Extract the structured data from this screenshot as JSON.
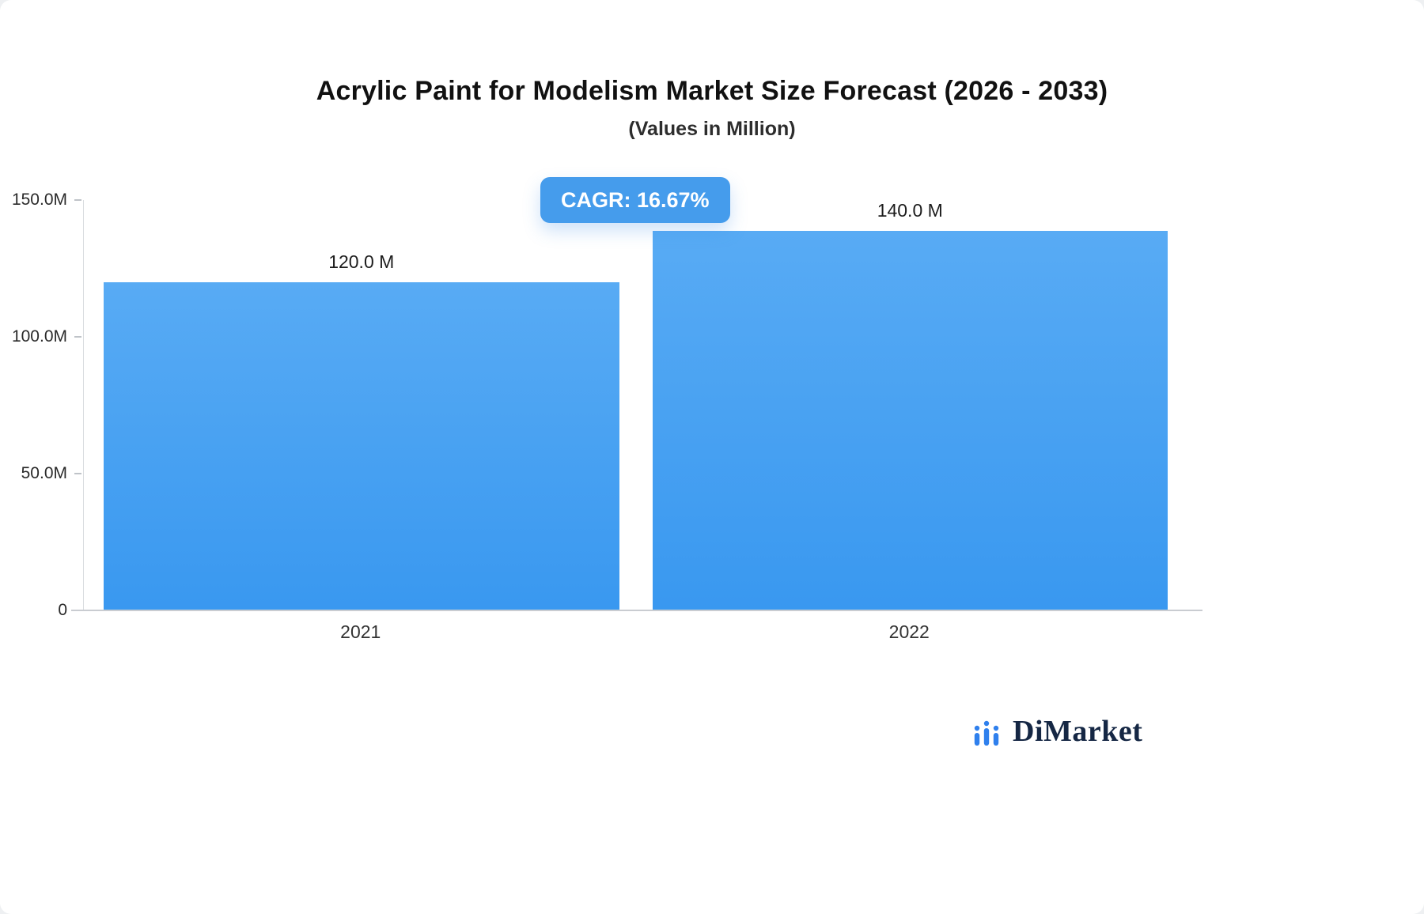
{
  "header": {
    "title": "Acrylic Paint for Modelism Market Size Forecast (2026 - 2033)",
    "subtitle": "(Values in Million)"
  },
  "cagr_badge": {
    "label": "CAGR: 16.67%",
    "bg_color": "#459CEC",
    "text_color": "#ffffff"
  },
  "chart_data": {
    "type": "bar",
    "categories": [
      "2021",
      "2022"
    ],
    "values": [
      120.0,
      140.0
    ],
    "value_labels": [
      "120.0 M",
      "140.0 M"
    ],
    "title": "Acrylic Paint for Modelism Market Size Forecast (2026 - 2033)",
    "subtitle": "(Values in Million)",
    "unit": "Million",
    "xlabel": "",
    "ylabel": "",
    "ylim": [
      0,
      150
    ],
    "yticks": [
      {
        "value": 0,
        "label": "0"
      },
      {
        "value": 50,
        "label": "50.0M"
      },
      {
        "value": 100,
        "label": "100.0M"
      },
      {
        "value": 150,
        "label": "150.0M"
      }
    ],
    "grid": false,
    "legend": "none",
    "bar_color_top": "#58ABF4",
    "bar_color_bottom": "#3998F0"
  },
  "logo": {
    "text": "DiMarket",
    "text_color": "#152744",
    "icon": "bar-chart-icon",
    "icon_color": "#2F80ED"
  }
}
